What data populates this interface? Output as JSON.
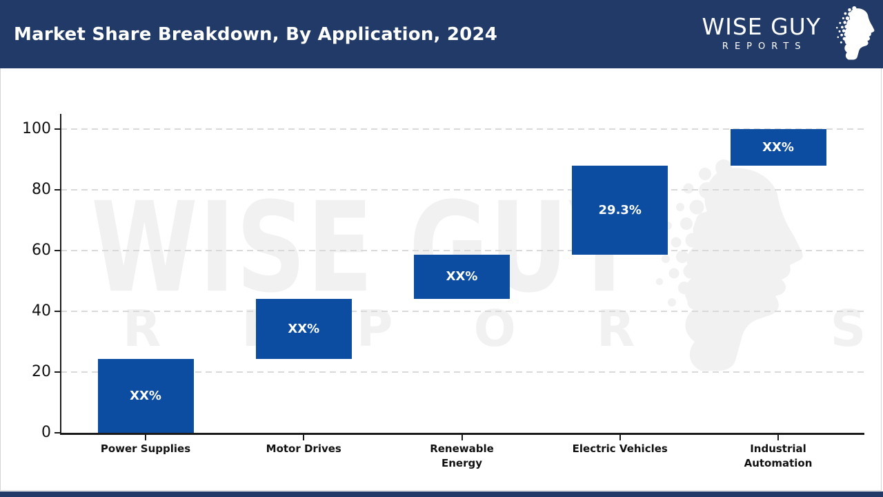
{
  "header": {
    "title": "Market Share Breakdown, By Application, 2024",
    "logo": {
      "line1": "WISE GUY",
      "line2": "REPORTS"
    }
  },
  "watermark": {
    "line1": "WISE GUY",
    "line2": "R E P O R T S"
  },
  "colors": {
    "navy": "#213A67",
    "bar_blue": "#0C4DA2",
    "gridline": "#D9D9D9",
    "axis": "#1A1A1A",
    "watermark": "#F1F1F1"
  },
  "chart_data": {
    "type": "bar",
    "variant": "floating-waterfall",
    "title": "Market Share Breakdown, By Application, 2024",
    "categories": [
      "Power Supplies",
      "Motor Drives",
      "Renewable Energy",
      "Electric Vehicles",
      "Industrial Automation"
    ],
    "series": [
      {
        "name": "Market share (%)",
        "segments": [
          {
            "category": "Power Supplies",
            "start": 0,
            "end": 24.4,
            "label": "XX%"
          },
          {
            "category": "Motor Drives",
            "start": 24.4,
            "end": 44.1,
            "label": "XX%"
          },
          {
            "category": "Renewable Energy",
            "start": 44.1,
            "end": 58.7,
            "label": "XX%"
          },
          {
            "category": "Electric Vehicles",
            "start": 58.7,
            "end": 88,
            "label": "29.3%"
          },
          {
            "category": "Industrial Automation",
            "start": 88,
            "end": 100,
            "label": "XX%"
          }
        ]
      }
    ],
    "xlabel": "",
    "ylabel": "",
    "yticks": [
      0,
      20,
      40,
      60,
      80,
      100
    ],
    "ylim": [
      0,
      105
    ],
    "grid": "horizontal-dashed",
    "legend": "none",
    "bar_label_color": "#FFFFFF",
    "bar_color": "#0C4DA2"
  }
}
